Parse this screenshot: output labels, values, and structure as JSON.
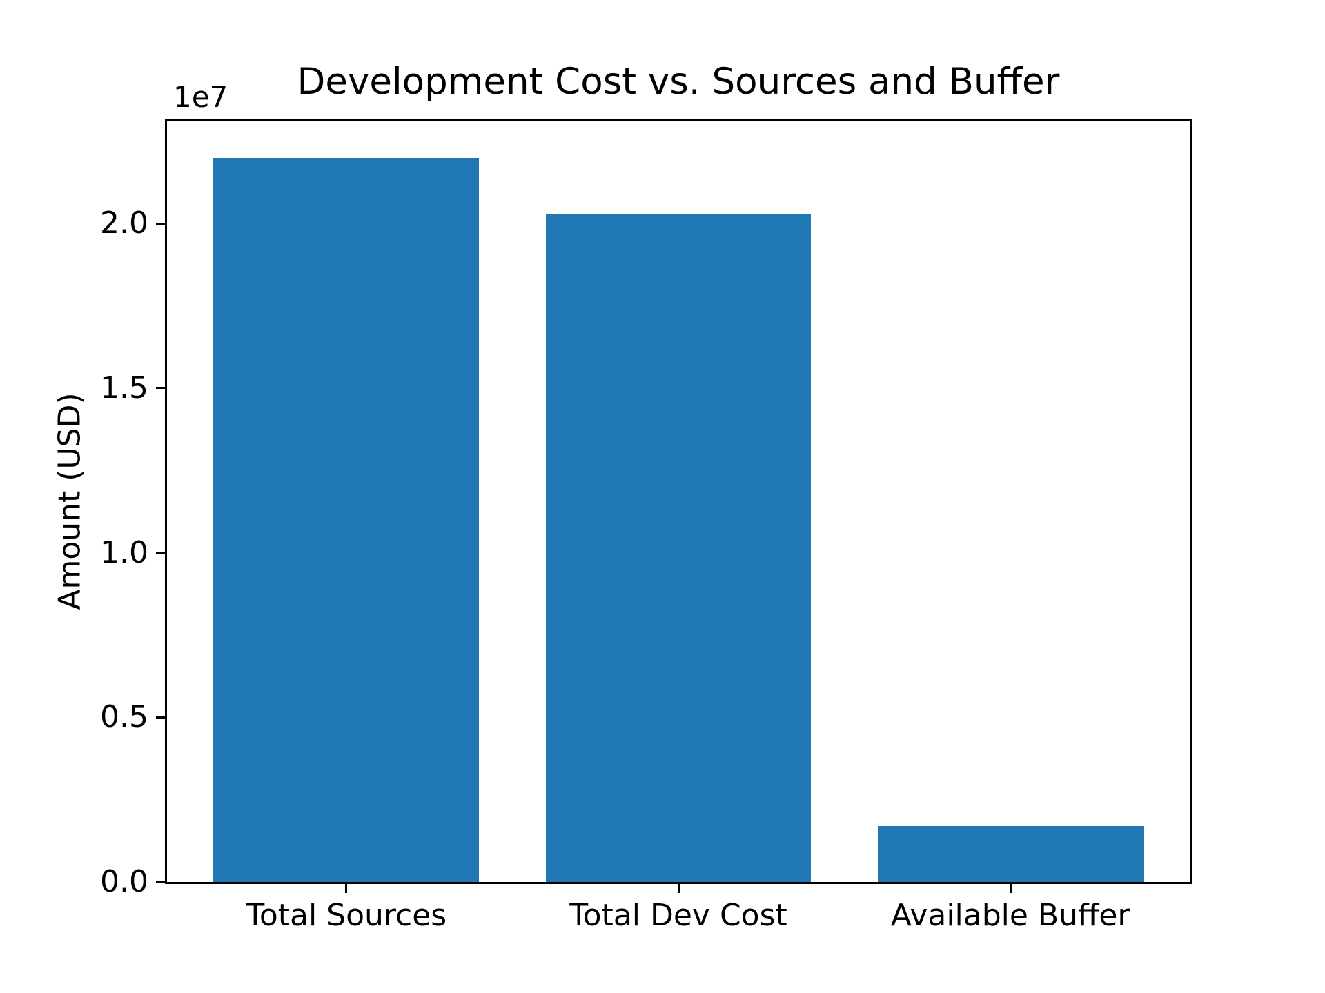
{
  "chart_data": {
    "type": "bar",
    "title": "Development Cost vs. Sources and Buffer",
    "xlabel": "",
    "ylabel": "Amount (USD)",
    "offset_text": "1e7",
    "categories": [
      "Total Sources",
      "Total Dev Cost",
      "Available Buffer"
    ],
    "values": [
      22000000,
      20300000,
      1700000
    ],
    "bar_color": "#1f77b4",
    "bar_width_fraction": 0.8,
    "xlim": [
      -0.54,
      2.54
    ],
    "ylim": [
      0,
      23100000
    ],
    "yticks": [
      0,
      5000000,
      10000000,
      15000000,
      20000000
    ],
    "ytick_labels": [
      "0.0",
      "0.5",
      "1.0",
      "1.5",
      "2.0"
    ],
    "grid": false,
    "legend": null,
    "spine_color": "#000000",
    "text_color": "#000000",
    "background_color": "#ffffff"
  }
}
